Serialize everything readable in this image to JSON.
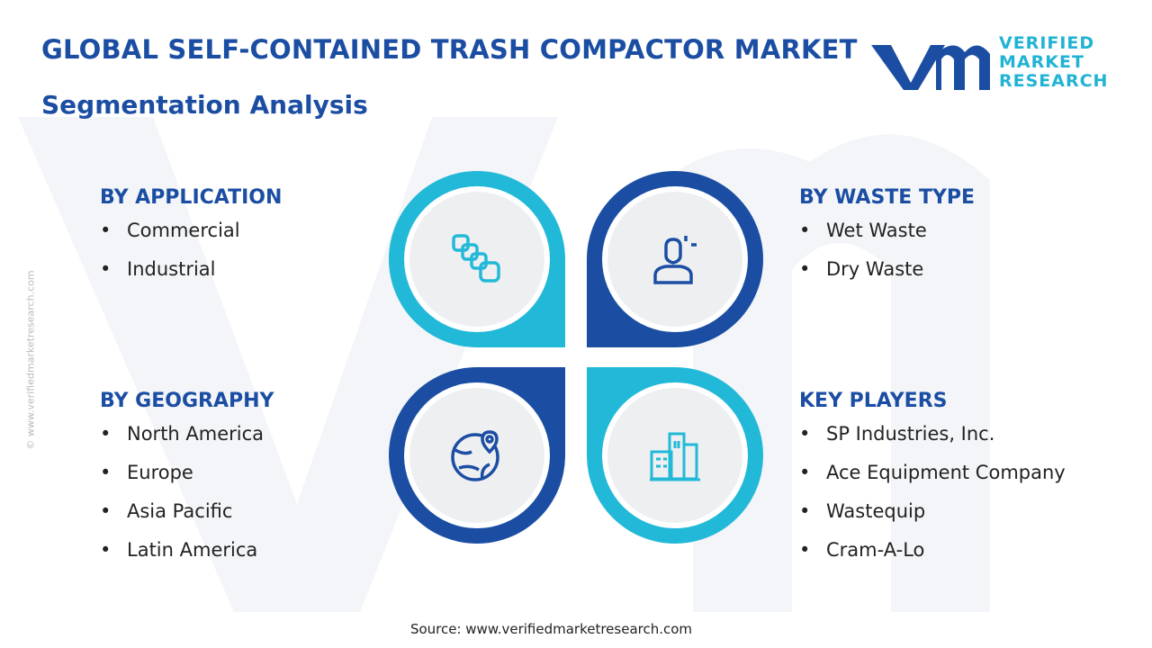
{
  "header": {
    "title": "GLOBAL SELF-CONTAINED TRASH COMPACTOR MARKET",
    "subtitle": "Segmentation Analysis"
  },
  "logo": {
    "lines": [
      "VERIFIED",
      "MARKET",
      "RESEARCH"
    ]
  },
  "side_text": "© www.verifiedmarketresearch.com",
  "segments": [
    {
      "heading": "BY APPLICATION",
      "items": [
        "Commercial",
        "Industrial"
      ]
    },
    {
      "heading": "BY WASTE TYPE",
      "items": [
        "Wet Waste",
        "Dry Waste"
      ]
    },
    {
      "heading": "BY GEOGRAPHY",
      "items": [
        "North America",
        "Europe",
        "Asia Pacific",
        "Latin America"
      ]
    },
    {
      "heading": "KEY PLAYERS",
      "items": [
        "SP Industries, Inc.",
        "Ace Equipment Company",
        "Wastequip",
        "Cram-A-Lo"
      ]
    }
  ],
  "source": "Source: www.verifiedmarketresearch.com"
}
